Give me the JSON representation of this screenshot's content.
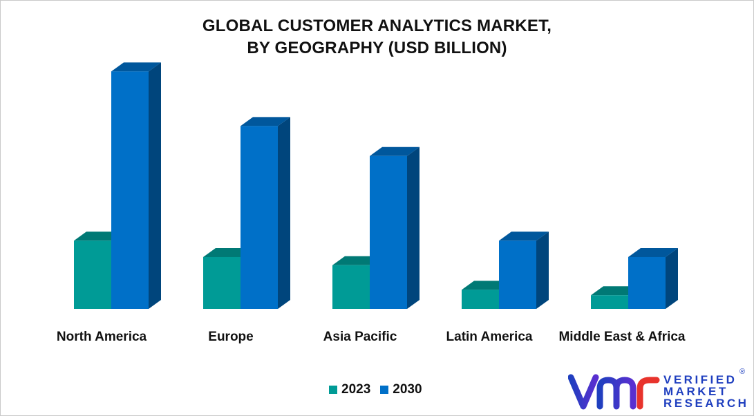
{
  "chart_data": {
    "type": "bar",
    "title_lines": [
      "GLOBAL CUSTOMER ANALYTICS MARKET,",
      "BY GEOGRAPHY (USD BILLION)"
    ],
    "categories": [
      "North America",
      "Europe",
      "Asia Pacific",
      "Latin America",
      "Middle East & Africa"
    ],
    "series": [
      {
        "name": "2023",
        "values": [
          25,
          19,
          16,
          7,
          5
        ],
        "color": "#009b96"
      },
      {
        "name": "2030",
        "values": [
          87,
          67,
          56,
          25,
          19
        ],
        "color": "#0070c8"
      }
    ],
    "ylim": [
      0,
      90
    ],
    "grid": false,
    "legend_position": "bottom"
  },
  "logo": {
    "line1": "VERIFIED",
    "line2": "MARKET",
    "line3": "RESEARCH",
    "registered": "®"
  }
}
